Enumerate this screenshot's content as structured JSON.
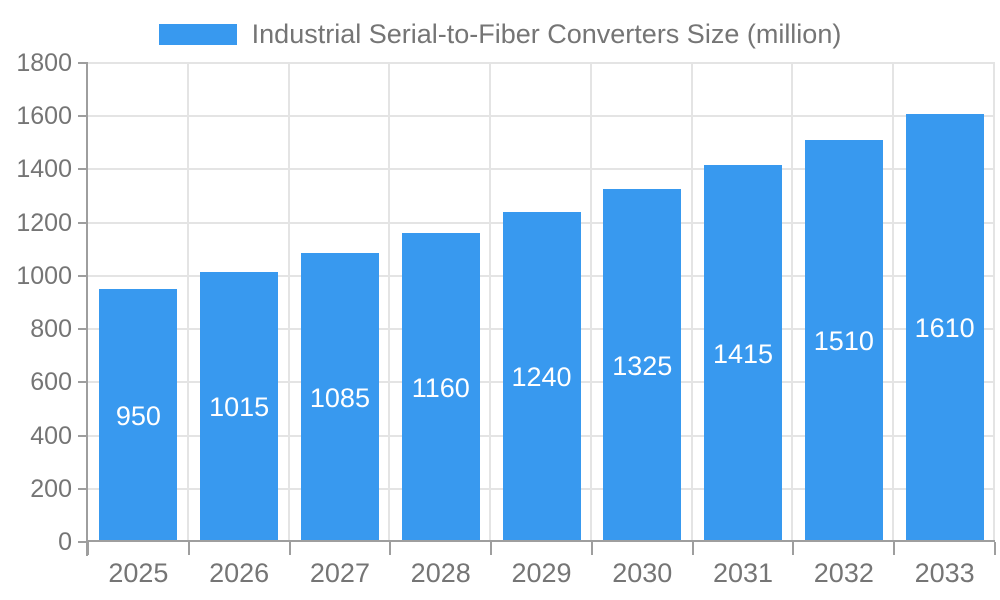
{
  "chart_data": {
    "type": "bar",
    "title": "Industrial Serial-to-Fiber Converters Size (million)",
    "categories": [
      "2025",
      "2026",
      "2027",
      "2028",
      "2029",
      "2030",
      "2031",
      "2032",
      "2033"
    ],
    "values": [
      950,
      1015,
      1085,
      1160,
      1240,
      1325,
      1415,
      1510,
      1610
    ],
    "xlabel": "",
    "ylabel": "",
    "ylim": [
      0,
      1800
    ],
    "ytick_step": 200,
    "ytick_labels": [
      "0",
      "200",
      "400",
      "600",
      "800",
      "1000",
      "1200",
      "1400",
      "1600",
      "1800"
    ],
    "grid": true,
    "legend_position": "top-center",
    "value_label_position": "inside-center",
    "colors": {
      "bar": "#3899EF",
      "value_label": "#ffffff",
      "axis_line": "#9e9e9e",
      "gridline": "#e4e4e4",
      "tick_label": "#757575",
      "legend_text": "#757575",
      "background": "#ffffff"
    }
  }
}
